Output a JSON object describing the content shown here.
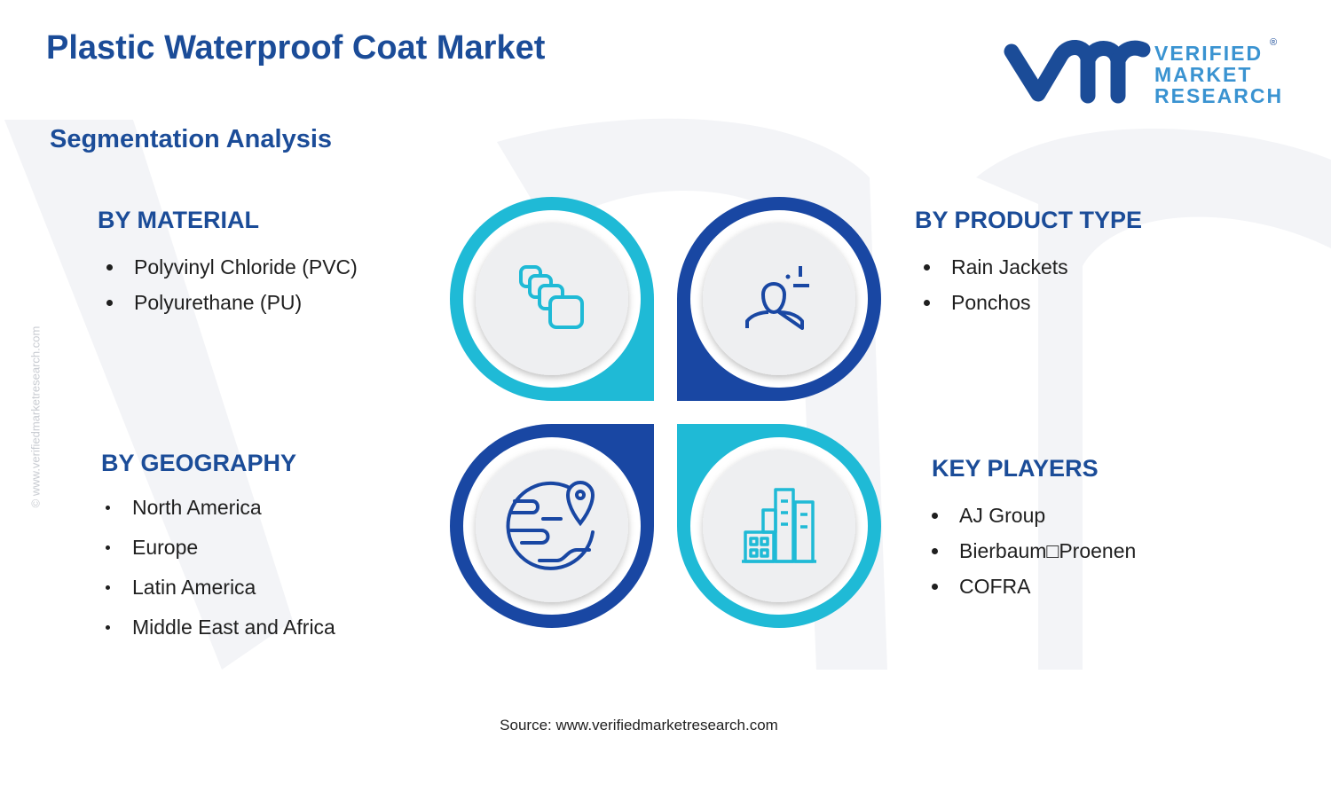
{
  "header": {
    "title": "Plastic Waterproof Coat Market",
    "subtitle": "Segmentation Analysis"
  },
  "logo": {
    "lines": [
      "VERIFIED",
      "MARKET",
      "RESEARCH"
    ],
    "mark": "®"
  },
  "watermark": "© www.verifiedmarketresearch.com",
  "segments": [
    {
      "heading": "BY MATERIAL",
      "items": [
        "Polyvinyl Chloride (PVC)",
        "Polyurethane (PU)"
      ]
    },
    {
      "heading": "BY PRODUCT TYPE",
      "items": [
        "Rain Jackets",
        "Ponchos"
      ]
    },
    {
      "heading": "BY GEOGRAPHY",
      "items": [
        "North America",
        "Europe",
        "Latin America",
        "Middle East and Africa"
      ]
    },
    {
      "heading": "KEY PLAYERS",
      "items": [
        "AJ Group",
        "Bierbaum□Proenen",
        "COFRA"
      ]
    }
  ],
  "source": "Source: www.verifiedmarketresearch.com"
}
